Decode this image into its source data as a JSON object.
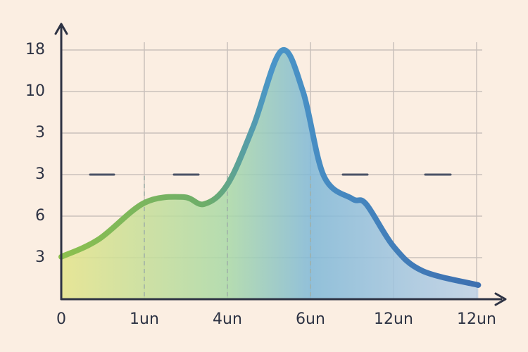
{
  "chart_data": {
    "type": "area",
    "x": [
      0,
      0.45,
      1,
      1.47,
      1.72,
      2,
      2.31,
      2.65,
      2.91,
      3.16,
      3.5,
      3.67,
      4,
      4.35,
      5.02
    ],
    "values": [
      1.02,
      1.44,
      2.32,
      2.46,
      2.29,
      2.76,
      4.15,
      5.98,
      5.0,
      2.97,
      2.42,
      2.29,
      1.27,
      0.68,
      0.34
    ],
    "color": "#3f7fbf",
    "xlim": [
      0,
      5
    ],
    "xticks": [
      0,
      {
        "value": 1,
        "label": "1un"
      },
      {
        "value": 2,
        "label": "4un"
      },
      {
        "value": 3,
        "label": "6un"
      },
      {
        "value": 4,
        "label": "12un"
      },
      {
        "value": 5,
        "label": "12un"
      }
    ],
    "ylim": [
      0,
      6
    ],
    "yticks": [
      {
        "value": 1,
        "label": "3"
      },
      {
        "value": 2,
        "label": "6"
      },
      {
        "value": 3,
        "label": "3"
      },
      {
        "value": 4,
        "label": "3"
      },
      {
        "value": 5,
        "label": "10"
      },
      {
        "value": 6,
        "label": "18"
      }
    ],
    "grid": true
  }
}
